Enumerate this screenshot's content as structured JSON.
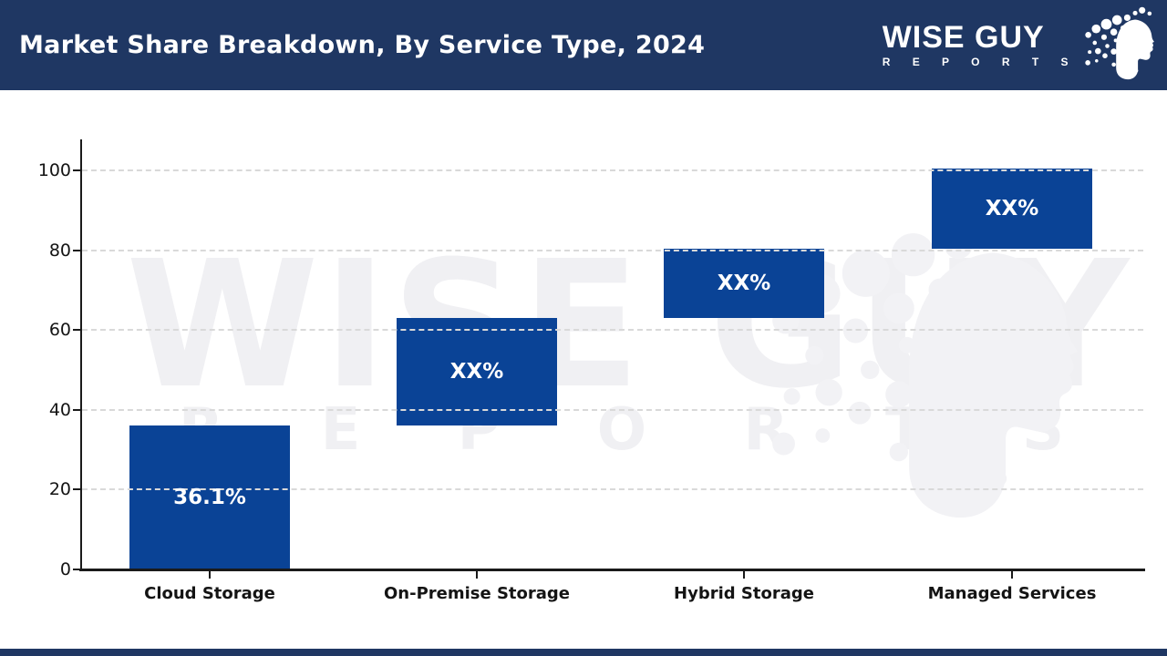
{
  "header": {
    "title": "Market Share Breakdown, By Service Type, 2024",
    "logo": {
      "name": "WISE GUY",
      "sub": "R E P O R T S"
    }
  },
  "watermark": {
    "name": "WISE GUY",
    "sub": "R E P O R T S"
  },
  "colors": {
    "header_bg": "#1f3763",
    "footer_bg": "#1f3763",
    "bar": "#0a4396",
    "gridline": "#d9d9d9",
    "axis": "#1a1a1a",
    "bar_label": "#ffffff",
    "watermark": "#f0f0f3"
  },
  "chart_data": {
    "type": "bar",
    "variant": "waterfall",
    "title": "Market Share Breakdown, By Service Type, 2024",
    "categories": [
      "Cloud Storage",
      "On-Premise Storage",
      "Hybrid Storage",
      "Managed Services"
    ],
    "series": [
      {
        "name": "Market Share %",
        "segments": [
          {
            "category": "Cloud Storage",
            "start": 0,
            "end": 36.1,
            "label": "36.1%"
          },
          {
            "category": "On-Premise Storage",
            "start": 36.1,
            "end": 63.0,
            "label": "XX%"
          },
          {
            "category": "Hybrid Storage",
            "start": 63.0,
            "end": 80.3,
            "label": "XX%"
          },
          {
            "category": "Managed Services",
            "start": 80.3,
            "end": 100.4,
            "label": "XX%"
          }
        ]
      }
    ],
    "xlabel": "",
    "ylabel": "",
    "yticks": [
      0,
      20,
      40,
      60,
      80,
      100
    ],
    "ylim": [
      0,
      107
    ],
    "grid": "horizontal-dashed",
    "legend_position": "none"
  }
}
